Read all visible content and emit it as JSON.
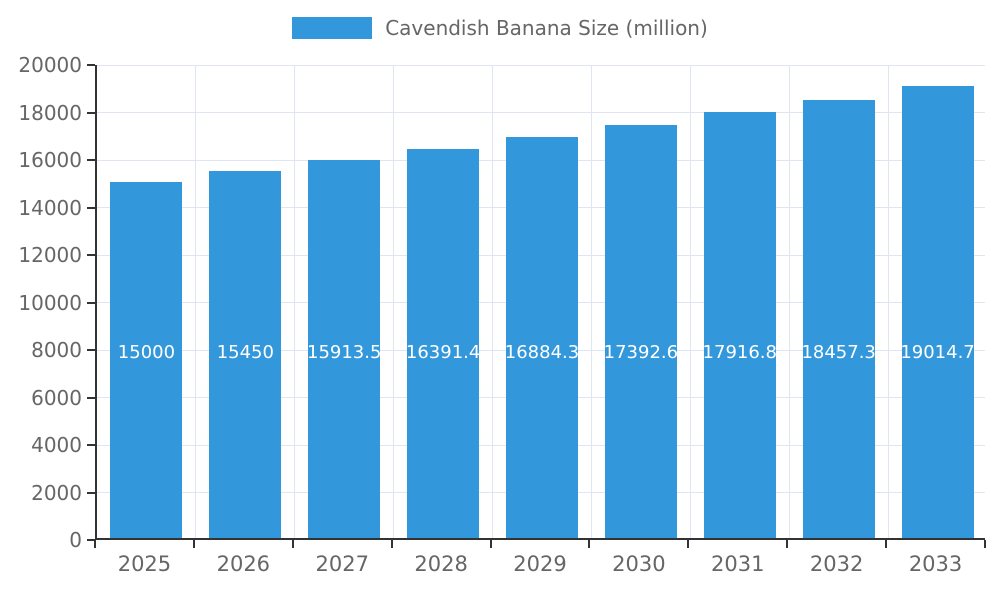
{
  "legend": {
    "label": "Cavendish Banana Size (million)",
    "swatch_color": "#3398DB"
  },
  "chart_data": {
    "type": "bar",
    "title": "Cavendish Banana Size (million)",
    "categories": [
      "2025",
      "2026",
      "2027",
      "2028",
      "2029",
      "2030",
      "2031",
      "2032",
      "2033"
    ],
    "values": [
      15000,
      15450,
      15913.5,
      16391.4,
      16884.3,
      17392.6,
      17916.8,
      18457.3,
      19014.7
    ],
    "value_labels": [
      "15000",
      "15450",
      "15913.5",
      "16391.4",
      "16884.3",
      "17392.6",
      "17916.8",
      "18457.3",
      "19014.7"
    ],
    "xlabel": "",
    "ylabel": "",
    "ylim": [
      0,
      20000
    ],
    "yticks": [
      0,
      2000,
      4000,
      6000,
      8000,
      10000,
      12000,
      14000,
      16000,
      18000,
      20000
    ],
    "grid": true,
    "legend_position": "top-center",
    "bar_color": "#3398DB",
    "bar_label_color": "#ffffff",
    "axis_color": "#333333",
    "grid_color": "#e0e6f1",
    "tick_label_color": "#666666"
  }
}
